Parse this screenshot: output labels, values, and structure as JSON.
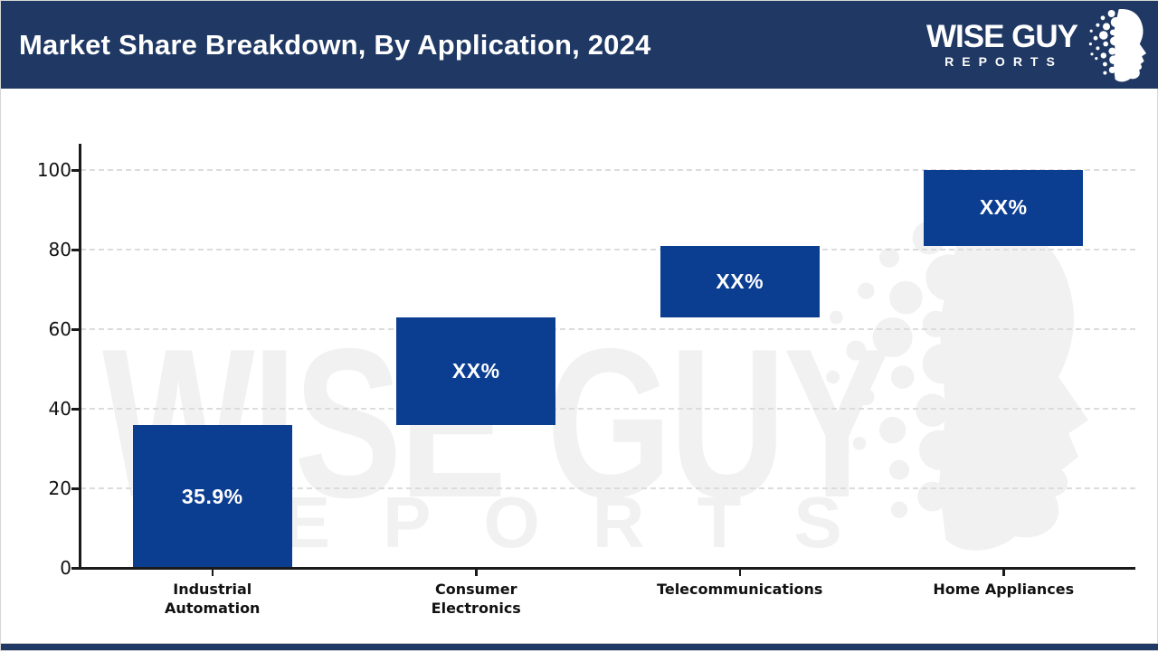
{
  "header": {
    "title": "Market Share Breakdown, By Application, 2024",
    "background_color": "#1f3864",
    "logo": {
      "name": "WISE GUY",
      "tagline": "REPORTS"
    }
  },
  "watermark": {
    "name": "WISE GUY",
    "tagline": "REPORTS"
  },
  "chart_data": {
    "type": "bar",
    "subtype": "floating-segment-waterfall",
    "title": "Market Share Breakdown, By Application, 2024",
    "categories": [
      "Industrial Automation",
      "Consumer Electronics",
      "Telecommunications",
      "Home Appliances"
    ],
    "category_label_lines": [
      [
        "Industrial",
        "Automation"
      ],
      [
        "Consumer",
        "Electronics"
      ],
      [
        "Telecommunications"
      ],
      [
        "Home Appliances"
      ]
    ],
    "bars": [
      {
        "category": "Industrial Automation",
        "start": 0,
        "end": 35.9,
        "label": "35.9%"
      },
      {
        "category": "Consumer Electronics",
        "start": 35.9,
        "end": 63,
        "label": "XX%"
      },
      {
        "category": "Telecommunications",
        "start": 63,
        "end": 81,
        "label": "XX%"
      },
      {
        "category": "Home Appliances",
        "start": 81,
        "end": 100,
        "label": "XX%"
      }
    ],
    "ylim": [
      0,
      100
    ],
    "yticks": [
      0,
      20,
      40,
      60,
      80,
      100
    ],
    "xlabel": "",
    "ylabel": "",
    "legend": false,
    "grid": true,
    "grid_style": "dashed",
    "grid_color": "#dcdcdc",
    "bar_color": "#0b3d91",
    "bar_label_color": "#ffffff",
    "axis_color": "#1a1a1a"
  },
  "footer": {
    "background_color": "#1f3864"
  }
}
